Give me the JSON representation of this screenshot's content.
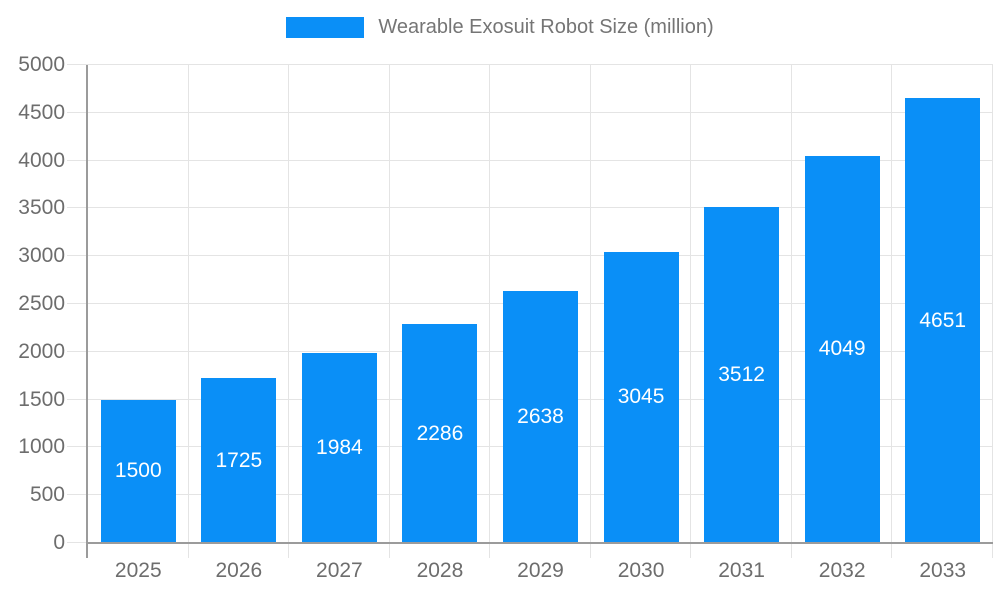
{
  "chart_data": {
    "type": "bar",
    "title": "Wearable Exosuit Robot Size (million)",
    "categories": [
      "2025",
      "2026",
      "2027",
      "2028",
      "2029",
      "2030",
      "2031",
      "2032",
      "2033"
    ],
    "values": [
      1500,
      1725,
      1984,
      2286,
      2638,
      3045,
      3512,
      4049,
      4651
    ],
    "y_ticks": [
      "0",
      "500",
      "1000",
      "1500",
      "2000",
      "2500",
      "3000",
      "3500",
      "4000",
      "4500",
      "5000"
    ],
    "ylim": [
      0,
      5000
    ],
    "xlabel": "",
    "ylabel": "",
    "grid": true,
    "legend_position": "top-center",
    "value_label_style": "inside-center",
    "colors": {
      "bar": "#0a8ff7",
      "grid": "#e4e4e4",
      "axis": "#9b9b9b",
      "tick_label": "#6d6d6d",
      "title": "#757575",
      "value_label": "#ffffff",
      "background": "#ffffff"
    }
  }
}
